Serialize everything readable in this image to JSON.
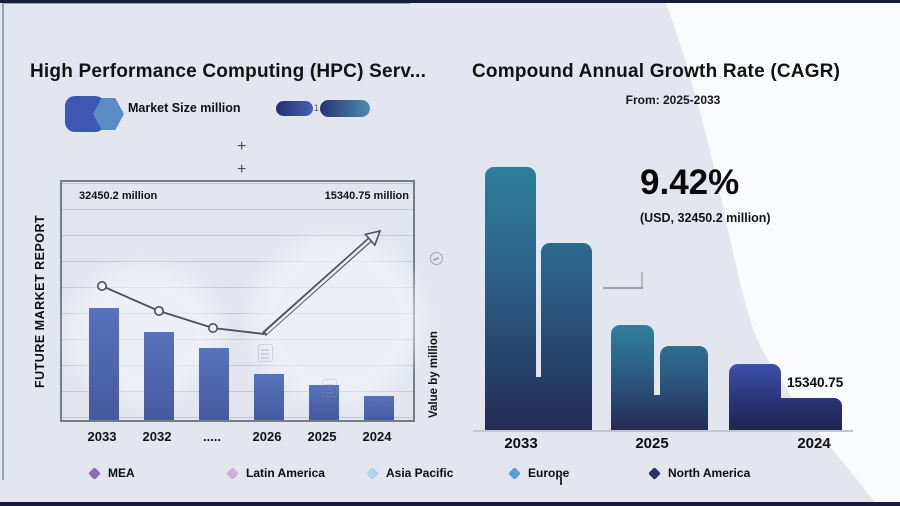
{
  "header": {
    "title_left": "High Performance Computing (HPC) Serv...",
    "title_right": "Compound Annual Growth Rate (CAGR)",
    "subtitle": "From: 2025-2033",
    "market_size_label": "Market Size million",
    "pill_separator": "1"
  },
  "side_labels": {
    "watermark": "FUTURE MARKET REPORT",
    "value_axis": "Value by million"
  },
  "decor": {
    "plus_marks": [
      "+",
      "+"
    ]
  },
  "chart_data": [
    {
      "id": "market-size-by-year",
      "type": "bar",
      "title": "Market Size million",
      "ylabel": "Value by million",
      "categories": [
        "2033",
        "2032",
        ".....",
        "2026",
        "2025",
        "2024"
      ],
      "relative_heights_pct": [
        100,
        79,
        64,
        41,
        31,
        21
      ],
      "annotations": [
        {
          "text": "32450.2 million",
          "position": "top-left",
          "refers_to": "2033"
        },
        {
          "text": "15340.75 million",
          "position": "top-right",
          "refers_to": "2024"
        }
      ],
      "overlay": {
        "grid": true,
        "trend_line": "declining line with three open circle markers over 2033-2026, then a hollow double-stroke growth arrow rising to the top right"
      }
    },
    {
      "id": "cagr-highlight",
      "type": "bar",
      "cagr": "9.42%",
      "cagr_note": "(USD, 32450.2 million)",
      "categories": [
        "2033",
        "2025",
        "2024"
      ],
      "series": [
        {
          "name": "bar-a",
          "relative_heights_pct": [
            100,
            40,
            25
          ]
        },
        {
          "name": "bar-b",
          "relative_heights_pct": [
            71,
            32,
            12
          ]
        }
      ],
      "value_label": {
        "text": "15340.75",
        "refers_to": "2024"
      }
    }
  ],
  "legend": {
    "items": [
      {
        "label": "MEA",
        "color": "#8a6bb0"
      },
      {
        "label": "Latin America",
        "color": "#cfaede"
      },
      {
        "label": "Asia Pacific",
        "color": "#aed3ec"
      },
      {
        "label": "Europe",
        "color": "#57a0dc"
      },
      {
        "label": "North America",
        "color": "#2b3464"
      }
    ]
  },
  "colors": {
    "background": "#e3e6ef",
    "edge_bar": "#161d3a",
    "left_bar_top": "#5673bb",
    "left_bar_bottom": "#47599e",
    "right_bar_top": "#2e809c",
    "right_bar_bottom": "#232b54",
    "bar_2024_top": "#3d51a9",
    "bar_2024_bottom": "#1f2550",
    "frame_border": "#767b88"
  }
}
